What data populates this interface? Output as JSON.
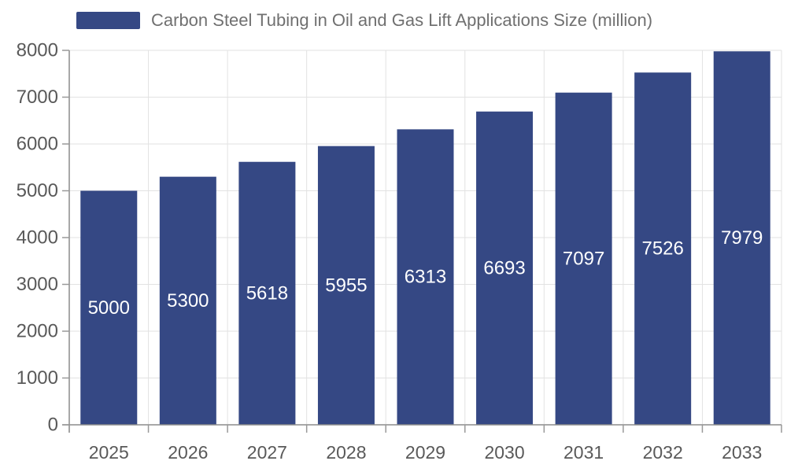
{
  "legend": {
    "label": "Carbon Steel Tubing in Oil and Gas Lift Applications Size (million)"
  },
  "chart_data": {
    "type": "bar",
    "title": "Carbon Steel Tubing in Oil and Gas Lift Applications Size (million)",
    "categories": [
      "2025",
      "2026",
      "2027",
      "2028",
      "2029",
      "2030",
      "2031",
      "2032",
      "2033"
    ],
    "values": [
      5000,
      5300,
      5618,
      5955,
      6313,
      6693,
      7097,
      7526,
      7979
    ],
    "xlabel": "",
    "ylabel": "",
    "ylim": [
      0,
      8000
    ],
    "ytick_step": 1000,
    "grid": true,
    "legend_position": "top-left",
    "bar_labels_position": "inside-middle"
  },
  "colors": {
    "bar": "#354884",
    "bar_label": "#ffffff",
    "grid_line": "#e2e2e2",
    "axis_line": "#8c8c8c",
    "tick_mark": "#999999",
    "tick_label": "#595959",
    "legend_text": "#707070",
    "background": "#ffffff"
  }
}
